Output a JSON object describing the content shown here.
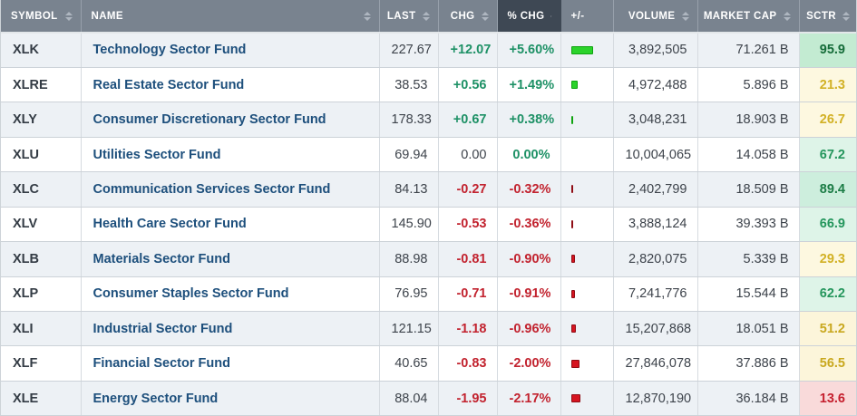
{
  "table": {
    "columns": [
      {
        "key": "symbol",
        "label": "SYMBOL",
        "align": "left",
        "sortable": true,
        "active": false
      },
      {
        "key": "name",
        "label": "NAME",
        "align": "left",
        "sortable": true,
        "active": false
      },
      {
        "key": "last",
        "label": "LAST",
        "align": "right",
        "sortable": true,
        "active": false
      },
      {
        "key": "chg",
        "label": "CHG",
        "align": "right",
        "sortable": true,
        "active": false
      },
      {
        "key": "pct_chg",
        "label": "% CHG",
        "align": "right",
        "sortable": true,
        "active": true,
        "sort_dir": "desc"
      },
      {
        "key": "bar",
        "label": "+/-",
        "align": "left",
        "sortable": false,
        "active": false
      },
      {
        "key": "volume",
        "label": "VOLUME",
        "align": "right",
        "sortable": true,
        "active": false
      },
      {
        "key": "market_cap",
        "label": "MARKET CAP",
        "align": "right",
        "sortable": true,
        "active": false
      },
      {
        "key": "sctr",
        "label": "SCTR",
        "align": "right",
        "sortable": true,
        "active": false
      }
    ],
    "rows": [
      {
        "symbol": "XLK",
        "name": "Technology Sector Fund",
        "last": "227.67",
        "chg": "+12.07",
        "chg_dir": "pos",
        "pct_chg": "+5.60%",
        "pct_dir": "pos",
        "bar": {
          "w": 24,
          "color": "green"
        },
        "volume": "3,892,505",
        "market_cap": "71.261 B",
        "sctr": "95.9",
        "sctr_bg": "#c3ebd2",
        "sctr_fg": "#156c39"
      },
      {
        "symbol": "XLRE",
        "name": "Real Estate Sector Fund",
        "last": "38.53",
        "chg": "+0.56",
        "chg_dir": "pos",
        "pct_chg": "+1.49%",
        "pct_dir": "pos",
        "bar": {
          "w": 7,
          "color": "green"
        },
        "volume": "4,972,488",
        "market_cap": "5.896 B",
        "sctr": "21.3",
        "sctr_bg": "#fdf8e0",
        "sctr_fg": "#d2b125"
      },
      {
        "symbol": "XLY",
        "name": "Consumer Discretionary Sector Fund",
        "last": "178.33",
        "chg": "+0.67",
        "chg_dir": "pos",
        "pct_chg": "+0.38%",
        "pct_dir": "pos",
        "bar": {
          "w": 2,
          "color": "green"
        },
        "volume": "3,048,231",
        "market_cap": "18.903 B",
        "sctr": "26.7",
        "sctr_bg": "#fdf8e0",
        "sctr_fg": "#d2b125"
      },
      {
        "symbol": "XLU",
        "name": "Utilities Sector Fund",
        "last": "69.94",
        "chg": "0.00",
        "chg_dir": "zero",
        "pct_chg": "0.00%",
        "pct_dir": "pos",
        "bar": {
          "w": 0,
          "color": "none"
        },
        "volume": "10,004,065",
        "market_cap": "14.058 B",
        "sctr": "67.2",
        "sctr_bg": "#def4e8",
        "sctr_fg": "#24965c"
      },
      {
        "symbol": "XLC",
        "name": "Communication Services Sector Fund",
        "last": "84.13",
        "chg": "-0.27",
        "chg_dir": "neg",
        "pct_chg": "-0.32%",
        "pct_dir": "neg",
        "bar": {
          "w": 2,
          "color": "red"
        },
        "volume": "2,402,799",
        "market_cap": "18.509 B",
        "sctr": "89.4",
        "sctr_bg": "#cdeedd",
        "sctr_fg": "#1b7c45"
      },
      {
        "symbol": "XLV",
        "name": "Health Care Sector Fund",
        "last": "145.90",
        "chg": "-0.53",
        "chg_dir": "neg",
        "pct_chg": "-0.36%",
        "pct_dir": "neg",
        "bar": {
          "w": 2,
          "color": "red"
        },
        "volume": "3,888,124",
        "market_cap": "39.393 B",
        "sctr": "66.9",
        "sctr_bg": "#def4e8",
        "sctr_fg": "#24965c"
      },
      {
        "symbol": "XLB",
        "name": "Materials Sector Fund",
        "last": "88.98",
        "chg": "-0.81",
        "chg_dir": "neg",
        "pct_chg": "-0.90%",
        "pct_dir": "neg",
        "bar": {
          "w": 4,
          "color": "red"
        },
        "volume": "2,820,075",
        "market_cap": "5.339 B",
        "sctr": "29.3",
        "sctr_bg": "#fdf8e0",
        "sctr_fg": "#d2b125"
      },
      {
        "symbol": "XLP",
        "name": "Consumer Staples Sector Fund",
        "last": "76.95",
        "chg": "-0.71",
        "chg_dir": "neg",
        "pct_chg": "-0.91%",
        "pct_dir": "neg",
        "bar": {
          "w": 4,
          "color": "red"
        },
        "volume": "7,241,776",
        "market_cap": "15.544 B",
        "sctr": "62.2",
        "sctr_bg": "#def4e8",
        "sctr_fg": "#24965c"
      },
      {
        "symbol": "XLI",
        "name": "Industrial Sector Fund",
        "last": "121.15",
        "chg": "-1.18",
        "chg_dir": "neg",
        "pct_chg": "-0.96%",
        "pct_dir": "neg",
        "bar": {
          "w": 5,
          "color": "red"
        },
        "volume": "15,207,868",
        "market_cap": "18.051 B",
        "sctr": "51.2",
        "sctr_bg": "#fcf5da",
        "sctr_fg": "#c9a81f"
      },
      {
        "symbol": "XLF",
        "name": "Financial Sector Fund",
        "last": "40.65",
        "chg": "-0.83",
        "chg_dir": "neg",
        "pct_chg": "-2.00%",
        "pct_dir": "neg",
        "bar": {
          "w": 9,
          "color": "red"
        },
        "volume": "27,846,078",
        "market_cap": "37.886 B",
        "sctr": "56.5",
        "sctr_bg": "#fcf5da",
        "sctr_fg": "#c9a81f"
      },
      {
        "symbol": "XLE",
        "name": "Energy Sector Fund",
        "last": "88.04",
        "chg": "-1.95",
        "chg_dir": "neg",
        "pct_chg": "-2.17%",
        "pct_dir": "neg",
        "bar": {
          "w": 10,
          "color": "red"
        },
        "volume": "12,870,190",
        "market_cap": "36.184 B",
        "sctr": "13.6",
        "sctr_bg": "#f9dada",
        "sctr_fg": "#c51f2e"
      }
    ]
  },
  "colors": {
    "header_bg": "#79838f",
    "header_active_bg": "#3e4854",
    "header_fg": "#ffffff",
    "row_stripe": "#edf1f5",
    "positive": "#1e9166",
    "negative": "#c2232f",
    "name_link": "#1d4f7c",
    "bar_green": "#2bd32b",
    "bar_green_border": "#0fa30f",
    "bar_red": "#d61420",
    "bar_red_border": "#8f0d15"
  },
  "icons": {
    "sort_both": "sort-updown-icon",
    "sort_desc": "sort-descending-icon"
  }
}
